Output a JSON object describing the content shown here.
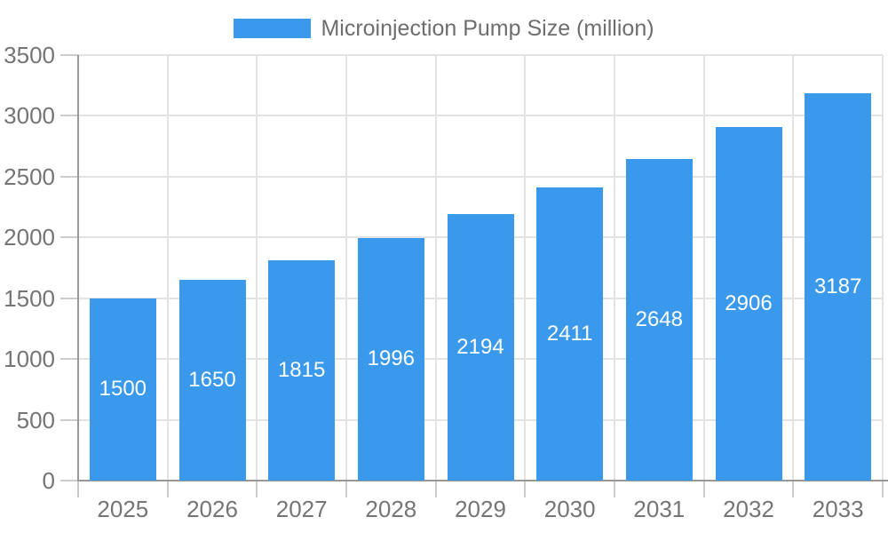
{
  "chart_data": {
    "type": "bar",
    "title": "Microinjection Pump Size (million)",
    "categories": [
      "2025",
      "2026",
      "2027",
      "2028",
      "2029",
      "2030",
      "2031",
      "2032",
      "2033"
    ],
    "values": [
      1500,
      1650,
      1815,
      1996,
      2194,
      2411,
      2648,
      2906,
      3187
    ],
    "xlabel": "",
    "ylabel": "",
    "ylim": [
      0,
      3500
    ],
    "yticks": [
      0,
      500,
      1000,
      1500,
      2000,
      2500,
      3000,
      3500
    ],
    "grid": true,
    "legend_position": "top-center",
    "value_labels": "inside-center-white"
  },
  "colors": {
    "bar": "#3B99EC",
    "gridline": "#E3E3E3",
    "axis_line": "#999999",
    "tick": "#CCCCCC",
    "axis_label": "#757575",
    "legend_text": "#6E6E6E",
    "value_label": "#FFFFFF",
    "background": "#FFFFFF"
  }
}
